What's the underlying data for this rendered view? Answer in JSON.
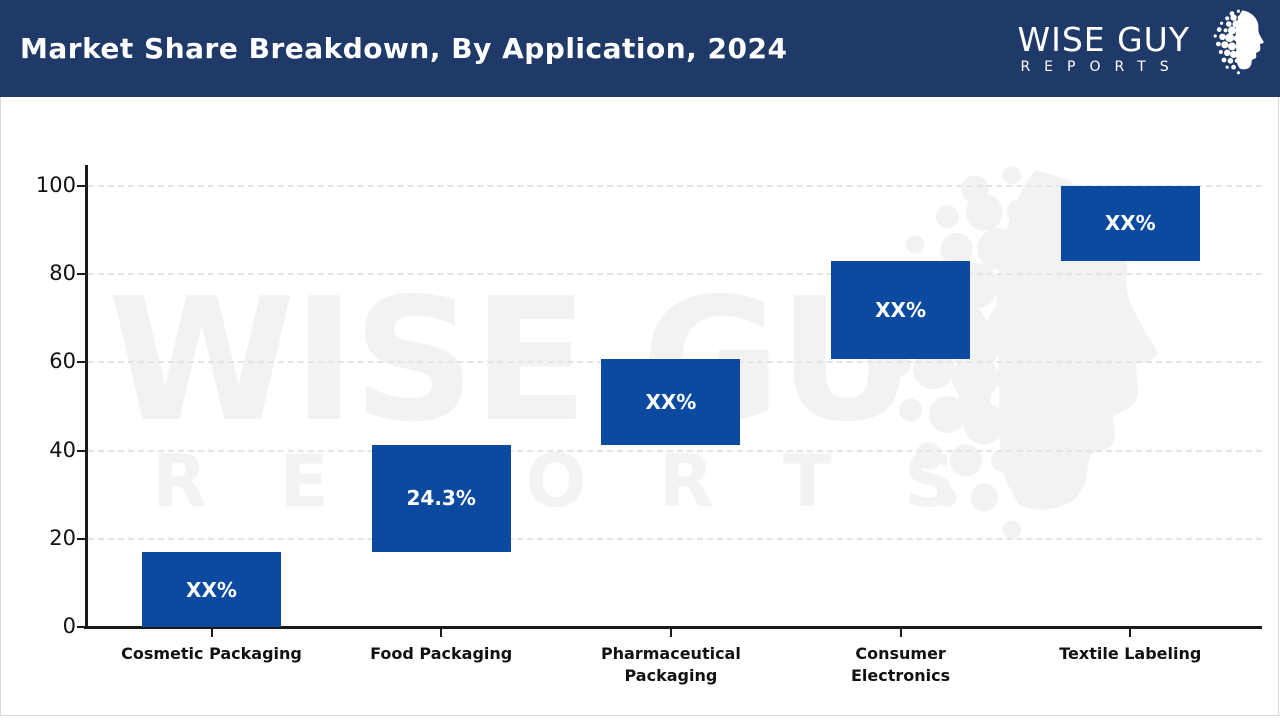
{
  "header": {
    "title": "Market Share Breakdown, By Application, 2024",
    "logo": {
      "name": "WISE GUY",
      "sub": "REPORTS",
      "icon": "dotted-face-profile-icon"
    }
  },
  "watermark": {
    "line1": "WISE GUY",
    "line2": "REPORTS",
    "icon": "dotted-face-profile-watermark"
  },
  "chart_data": {
    "type": "bar",
    "subtype": "floating-waterfall",
    "title": "Market Share Breakdown, By Application, 2024",
    "categories": [
      "Cosmetic Packaging",
      "Food Packaging",
      "Pharmaceutical Packaging",
      "Consumer Electronics",
      "Textile Labeling"
    ],
    "bars": [
      {
        "category": "Cosmetic Packaging",
        "display": "Cosmetic Packaging",
        "start": 0,
        "end": 17,
        "label": "XX%"
      },
      {
        "category": "Food Packaging",
        "display": "Food Packaging",
        "start": 17,
        "end": 41.3,
        "label": "24.3%"
      },
      {
        "category": "Pharmaceutical Packaging",
        "display": "Pharmaceutical\nPackaging",
        "start": 41.3,
        "end": 60.7,
        "label": "XX%"
      },
      {
        "category": "Consumer Electronics",
        "display": "Consumer\nElectronics",
        "start": 60.7,
        "end": 83,
        "label": "XX%"
      },
      {
        "category": "Textile Labeling",
        "display": "Textile Labeling",
        "start": 83,
        "end": 100,
        "label": "XX%"
      }
    ],
    "xlabel": "",
    "ylabel": "",
    "ylim": [
      0,
      100
    ],
    "yticks": [
      0,
      20,
      40,
      60,
      80,
      100
    ],
    "grid": "horizontal-dashed",
    "legend": false,
    "colors": {
      "bar": "#0b4a9f",
      "bar_label": "#ffffff",
      "header_background": "#1f3a68",
      "axis": "#1a1a1a",
      "gridline": "#e4e4e4",
      "watermark": "#f2f2f2"
    }
  }
}
